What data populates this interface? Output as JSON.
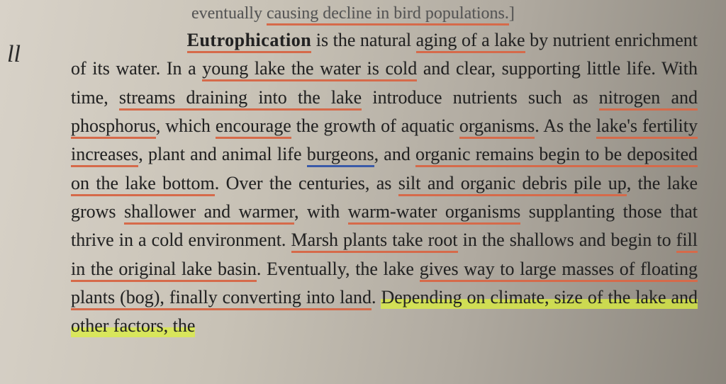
{
  "colors": {
    "red_underline": "#d66a4a",
    "blue_underline": "#3a5aa8",
    "yellow_highlight": "#dcf03c"
  },
  "margin_mark": "ll",
  "top_fragment_prefix": "eventually ",
  "top_fragment_underlined": "causing decline in bird populations.",
  "top_fragment_suffix": "]",
  "spans": {
    "s1": "Eutrophication",
    "s2": " is the natural ",
    "s3": "aging of a lake",
    "s4": " by nutrient enrichment of its water. In a ",
    "s5": "young lake the water is cold",
    "s6": " and clear, supporting little life. With time, ",
    "s7": "streams draining into the lake",
    "s8": " introduce nutrients such as ",
    "s9": "nitrogen and phosphorus",
    "s10": ", which ",
    "s11": "encourage",
    "s12": " the growth of aquatic ",
    "s13": "organisms",
    "s14": ". As the ",
    "s15": "lake's fertility increases",
    "s16": ", plant and animal life ",
    "s17": "burgeons",
    "s18": ", and ",
    "s19": "organic remains begin to be deposited on the lake bottom",
    "s20": ". Over the centuries, as ",
    "s21": "silt and organic debris pile up",
    "s22": ", the lake grows ",
    "s23": "shallower and warmer",
    "s24": ", with ",
    "s25": "warm-water organisms",
    "s26": " supplanting those that thrive in a cold environment. ",
    "s27": "Marsh plants take root",
    "s28": " in the shallows and begin to ",
    "s29": "fill in the original lake basin",
    "s30": ". Eventually, the lake ",
    "s31": "gives way to large masses of floating plants (bog), finally converting into land",
    "s32": ". ",
    "s33": "Depending on climate, size of the lake and other factors, the"
  }
}
